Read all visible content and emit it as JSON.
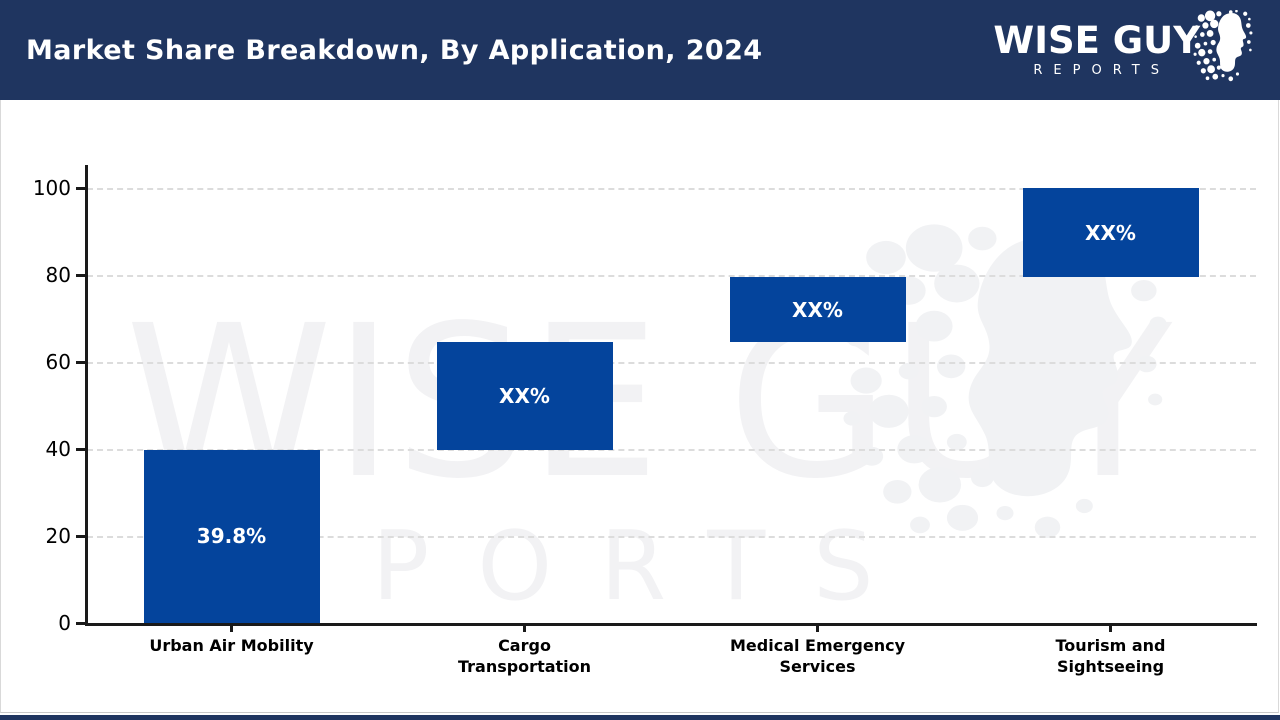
{
  "header": {
    "title": "Market Share Breakdown, By Application, 2024",
    "background": "#1f3560",
    "logo": {
      "name": "WISE GUY",
      "sub": "REPORTS"
    }
  },
  "watermark": {
    "line1": "WISE GUY",
    "line2": "REPORTS"
  },
  "footer": {
    "background": "#1f3560"
  },
  "chart_data": {
    "type": "bar",
    "subtype": "waterfall",
    "title": "Market Share Breakdown, By Application, 2024",
    "categories": [
      "Urban Air Mobility",
      "Cargo Transportation",
      "Medical Emergency Services",
      "Tourism and Sightseeing"
    ],
    "category_label_lines": [
      [
        "Urban Air Mobility"
      ],
      [
        "Cargo",
        "Transportation"
      ],
      [
        "Medical Emergency",
        "Services"
      ],
      [
        "Tourism and",
        "Sightseeing"
      ]
    ],
    "segments": [
      {
        "label": "39.8%",
        "start": 0,
        "end": 39.8
      },
      {
        "label": "XX%",
        "start": 39.8,
        "end": 64.6
      },
      {
        "label": "XX%",
        "start": 64.6,
        "end": 79.5
      },
      {
        "label": "XX%",
        "end": 100,
        "start": 79.5
      }
    ],
    "values_pct": [
      39.8,
      24.8,
      14.9,
      20.5
    ],
    "bar_labels": [
      "39.8%",
      "XX%",
      "XX%",
      "XX%"
    ],
    "xlabel": "",
    "ylabel": "",
    "yticks": [
      0,
      20,
      40,
      60,
      80,
      100
    ],
    "ylim": [
      0,
      105.3
    ],
    "grid": "horizontal-dashed",
    "legend": "none",
    "colors": {
      "bar": "#04449c",
      "bar_label": "#ffffff",
      "grid": "#dcdcdc",
      "axis": "#1a1a1a",
      "tick_label": "#000000"
    }
  }
}
